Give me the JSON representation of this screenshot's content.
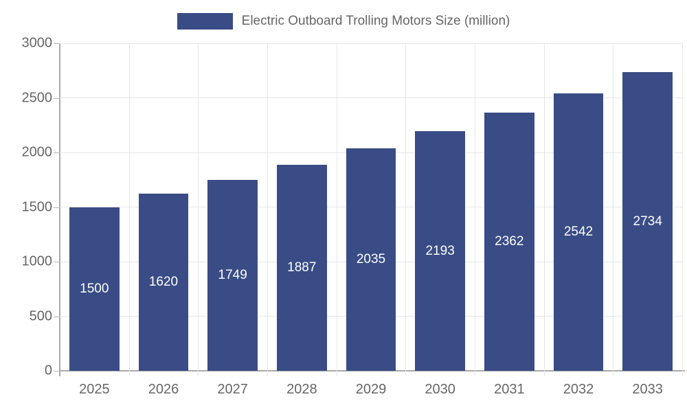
{
  "legend": {
    "label": "Electric Outboard Trolling Motors Size (million)"
  },
  "chart_data": {
    "type": "bar",
    "title": "Electric Outboard Trolling Motors Size (million)",
    "categories": [
      "2025",
      "2026",
      "2027",
      "2028",
      "2029",
      "2030",
      "2031",
      "2032",
      "2033"
    ],
    "values": [
      1500,
      1620,
      1749,
      1887,
      2035,
      2193,
      2362,
      2542,
      2734
    ],
    "xlabel": "",
    "ylabel": "",
    "ylim": [
      0,
      3000
    ],
    "ytick_step": 500,
    "ytick_labels": [
      "0",
      "500",
      "1000",
      "1500",
      "2000",
      "2500",
      "3000"
    ],
    "grid": true,
    "legend_position": "top",
    "value_labels_inside_bars": true
  },
  "colors": {
    "bar": "#3a4c85",
    "bar_label": "#ffffff",
    "grid": "#e6e6e6",
    "axis": "#a9a9a9",
    "tick": "#b3b3b3",
    "text": "#666666",
    "background": "#ffffff"
  }
}
